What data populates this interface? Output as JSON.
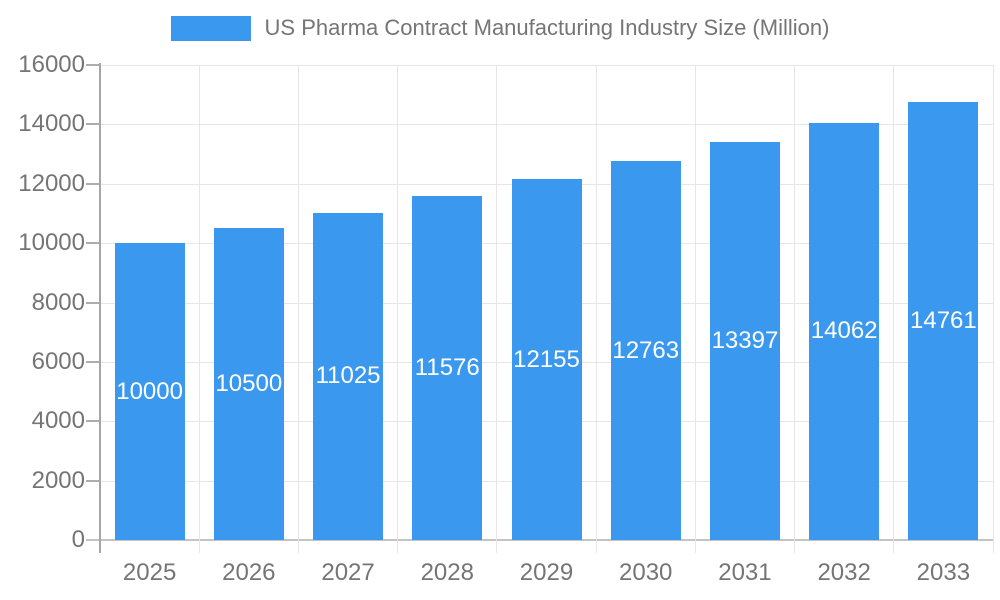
{
  "chart_data": {
    "type": "bar",
    "title": "US Pharma Contract Manufacturing Industry Size (Million)",
    "categories": [
      "2025",
      "2026",
      "2027",
      "2028",
      "2029",
      "2030",
      "2031",
      "2032",
      "2033"
    ],
    "values": [
      10000,
      10500,
      11025,
      11576,
      12155,
      12763,
      13397,
      14062,
      14761
    ],
    "series": [
      {
        "name": "US Pharma Contract Manufacturing Industry Size (Million)",
        "values": [
          10000,
          10500,
          11025,
          11576,
          12155,
          12763,
          13397,
          14062,
          14761
        ]
      }
    ],
    "xlabel": "",
    "ylabel": "",
    "ylim": [
      0,
      16000
    ],
    "ytick_step": 2000,
    "yticks": [
      0,
      2000,
      4000,
      6000,
      8000,
      10000,
      12000,
      14000,
      16000
    ],
    "grid": true,
    "bar_value_labels_shown": true,
    "legend_position": "top",
    "legend": {
      "label": "US Pharma Contract Manufacturing Industry Size (Million)"
    },
    "colors": {
      "bar": "#3A99EE",
      "bar_value_label": "#FFFFFF",
      "axis_text": "#757575",
      "gridline": "#E6E6E6",
      "zero_line": "#C4C4C4",
      "axis_line": "#A6A6A6",
      "background": "#FFFFFF"
    }
  }
}
